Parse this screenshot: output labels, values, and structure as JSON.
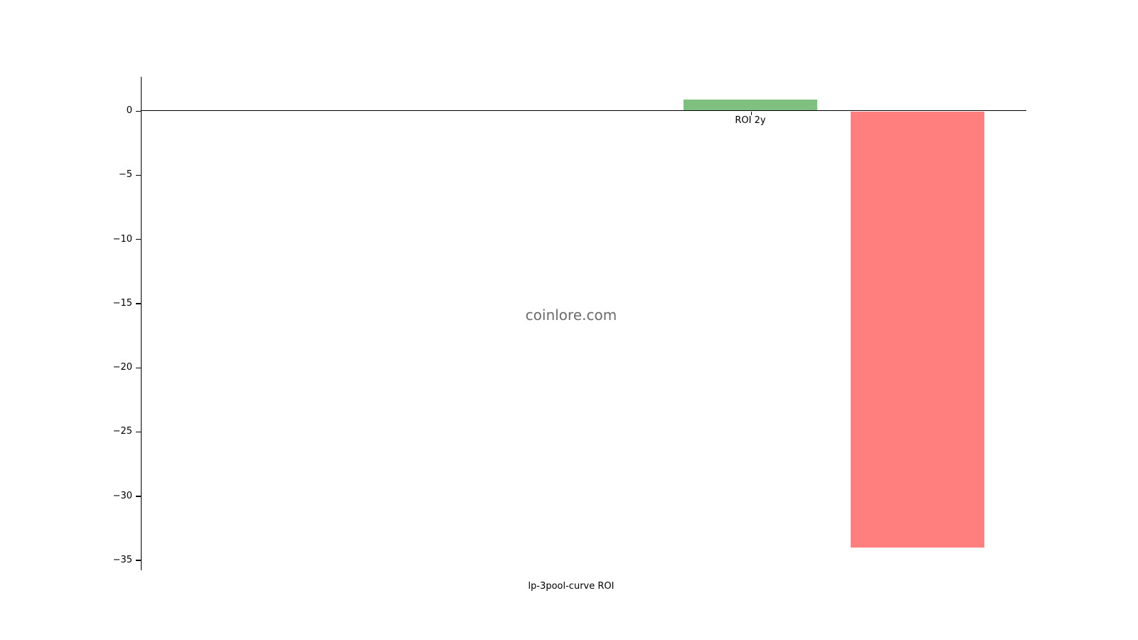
{
  "page": {
    "background_color": "#ffffff"
  },
  "chart_data": {
    "type": "bar",
    "title": "lp-3pool-curve ROI",
    "watermark": "coinlore.com",
    "categories": [
      "ROI 2y",
      ""
    ],
    "values": [
      0.9,
      -34
    ],
    "bar_colors": [
      "#7fbf7f",
      "#ff7f7f"
    ],
    "positive_color": "#7fbf7f",
    "negative_color": "#ff7f7f",
    "axis_color": "#000000",
    "tick_label_color": "#000000",
    "watermark_color": "#6b6b6b",
    "yticks": [
      0,
      -5,
      -10,
      -15,
      -20,
      -25,
      -30,
      -35
    ],
    "ytick_labels": [
      "0",
      "−5",
      "−10",
      "−15",
      "−20",
      "−25",
      "−30",
      "−35"
    ],
    "ylim": [
      -35.75,
      2.65
    ],
    "xlabel": "",
    "ylabel": "",
    "grid": false,
    "legend_position": "none"
  }
}
